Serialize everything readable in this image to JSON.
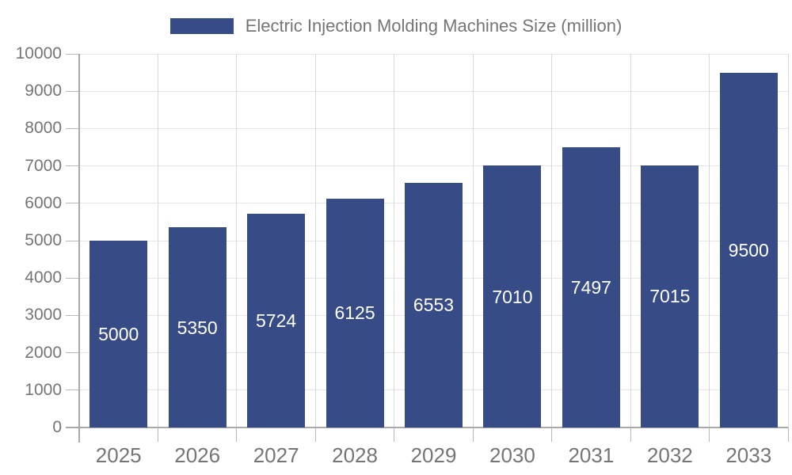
{
  "legend": {
    "label": "Electric Injection Molding Machines Size (million)"
  },
  "colors": {
    "bar": "#374b86",
    "axis_line": "#a9a9ad",
    "tick_mark": "#b8b8bc",
    "grid_h": "#e7e7e9",
    "grid_v": "#d8d8dd",
    "tick_text": "#757575",
    "legend_text": "#757575",
    "bar_label_text": "#ffffff",
    "background": "#ffffff"
  },
  "chart_data": {
    "type": "bar",
    "title": "Electric Injection Molding Machines Size (million)",
    "categories": [
      "2025",
      "2026",
      "2027",
      "2028",
      "2029",
      "2030",
      "2031",
      "2032",
      "2033"
    ],
    "series": [
      {
        "name": "Electric Injection Molding Machines Size (million)",
        "values": [
          5000,
          5350,
          5724,
          6125,
          6553,
          7010,
          7497,
          7015,
          9500
        ]
      }
    ],
    "values": [
      5000,
      5350,
      5724,
      6125,
      6553,
      7010,
      7497,
      7015,
      9500
    ],
    "value_labels": [
      "5000",
      "5350",
      "5724",
      "6125",
      "6553",
      "7010",
      "7497",
      "7015",
      "9500"
    ],
    "value_label_position": "inside-center",
    "xlabel": "",
    "ylabel": "",
    "ylim": [
      0,
      10000
    ],
    "ytick_step": 1000,
    "yticks": [
      0,
      1000,
      2000,
      3000,
      4000,
      5000,
      6000,
      7000,
      8000,
      9000,
      10000
    ],
    "grid": true,
    "legend_position": "top-center"
  }
}
